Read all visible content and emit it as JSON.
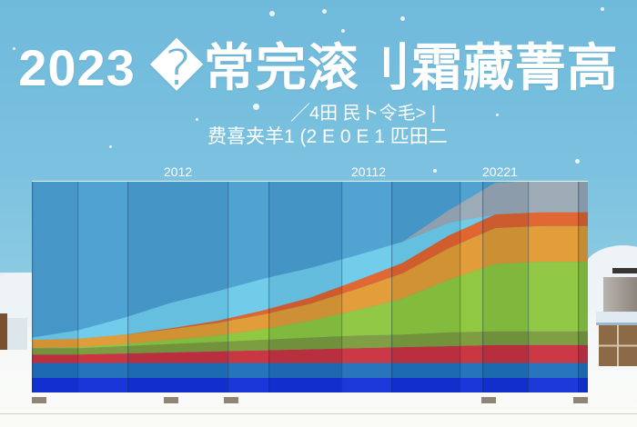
{
  "header": {
    "title": "2023 �常完滚刂霜藏菁高",
    "subtitle_line1": "╱4田 民ト令毛> |",
    "subtitle_line2": "费喜夹羊1 (2 E 0 E 1 匹田二"
  },
  "chart_data": {
    "type": "area",
    "stacked": true,
    "title": "2023 (garbled title text)",
    "xlabel": "",
    "ylabel": "",
    "x_tick_labels_top": [
      "2012",
      "20112",
      "20221"
    ],
    "x": [
      0,
      1,
      2,
      3,
      4,
      5,
      6,
      7,
      8,
      9,
      10,
      11,
      12
    ],
    "ylim": [
      0,
      100
    ],
    "grid": false,
    "legend": "none",
    "series": [
      {
        "name": "blue",
        "color": "#1330d8",
        "values": [
          7,
          7,
          7,
          7,
          7,
          7,
          7,
          7,
          7,
          7,
          7,
          7,
          7
        ]
      },
      {
        "name": "mid-blue",
        "color": "#1f6fb8",
        "values": [
          7,
          7,
          7,
          7,
          7,
          7,
          7,
          7,
          7,
          7,
          7,
          7,
          7
        ]
      },
      {
        "name": "red",
        "color": "#c8303c",
        "values": [
          4,
          4,
          4.5,
          5,
          5.5,
          6,
          6.5,
          7,
          7.5,
          8,
          8.5,
          8.5,
          8.5
        ]
      },
      {
        "name": "olive",
        "color": "#7a9a3a",
        "values": [
          3,
          3,
          3.5,
          4,
          4.5,
          5,
          5.5,
          6,
          6,
          6.5,
          6.5,
          6.5,
          6.5
        ]
      },
      {
        "name": "green",
        "color": "#8cc63c",
        "values": [
          0,
          0.5,
          1,
          2,
          3,
          5,
          8,
          12,
          17,
          25,
          32,
          33,
          33
        ]
      },
      {
        "name": "orange",
        "color": "#e09a32",
        "values": [
          4,
          4,
          4.5,
          5,
          6,
          7,
          8,
          10,
          12,
          15,
          17,
          17,
          17
        ]
      },
      {
        "name": "red-orange",
        "color": "#e0602a",
        "values": [
          0,
          0,
          0,
          0.5,
          1,
          2,
          3,
          4,
          5,
          6,
          6.5,
          6.5,
          6.5
        ]
      },
      {
        "name": "light-cyan",
        "color": "#6ccbea",
        "values": [
          1,
          4,
          8,
          12,
          14,
          15,
          14,
          12,
          10,
          6,
          0,
          0,
          0
        ]
      },
      {
        "name": "gray",
        "color": "#9aa8b4",
        "values": [
          0,
          0,
          0,
          0,
          0,
          0,
          0,
          0,
          0,
          6,
          15,
          15,
          15
        ]
      }
    ]
  },
  "axis": {
    "top_labels": [
      {
        "text": "2012",
        "x": 180
      },
      {
        "text": "20112",
        "x": 386
      },
      {
        "text": "20221",
        "x": 530
      }
    ]
  },
  "scene": {
    "left_house": "cabin",
    "right_house": "house"
  }
}
